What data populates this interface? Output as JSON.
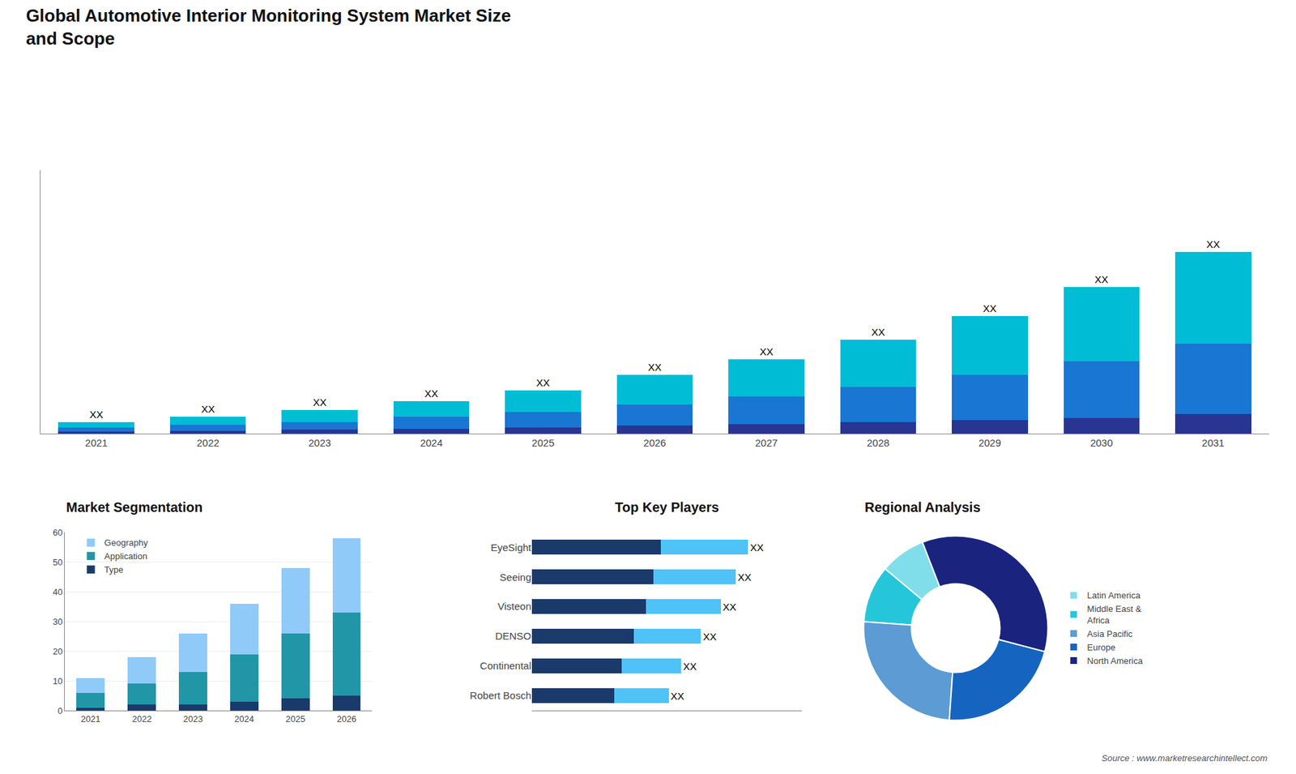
{
  "chart_data": [
    {
      "type": "bar",
      "title": "Global Automotive Interior Monitoring System Market Size\nand Scope",
      "annotations": [
        "Source : www.marketresearchintellect.com"
      ],
      "categories": [
        "2021",
        "2022",
        "2023",
        "2024",
        "2025",
        "2026",
        "2027",
        "2028",
        "2029",
        "2030",
        "2031"
      ],
      "stacked": true,
      "data_labels": true,
      "series": [
        {
          "color": "#283593",
          "values": [
            1,
            1.5,
            2,
            2.5,
            3,
            4,
            5,
            6,
            7,
            8,
            10
          ]
        },
        {
          "color": "#1976D2",
          "values": [
            2,
            3,
            4,
            6,
            8,
            11,
            14,
            18,
            23,
            29,
            36
          ]
        },
        {
          "color": "#00BCD4",
          "values": [
            3,
            4,
            6,
            8,
            11,
            15,
            19,
            24,
            30,
            38,
            47
          ],
          "value_labels": [
            "XX",
            "XX",
            "XX",
            "XX",
            "XX",
            "XX",
            "XX",
            "XX",
            "XX",
            "XX",
            "XX"
          ]
        }
      ],
      "ylim": [
        0,
        134.85
      ],
      "grid": false,
      "tick_labels": "x"
    },
    {
      "type": "bar",
      "title": "Market Segmentation",
      "categories": [
        "2021",
        "2022",
        "2023",
        "2024",
        "2025",
        "2026"
      ],
      "stacked": true,
      "series": [
        {
          "name": "Type",
          "color": "#1a3a6b",
          "values": [
            1,
            2,
            2,
            3,
            4,
            5
          ]
        },
        {
          "name": "Application",
          "color": "#2196A6",
          "values": [
            5,
            7,
            11,
            16,
            22,
            28
          ]
        },
        {
          "name": "Geography",
          "color": "#90CAF9",
          "values": [
            5,
            9,
            13,
            17,
            22,
            25
          ]
        }
      ],
      "ylim": [
        0,
        60
      ],
      "yticks": [
        0,
        10,
        20,
        30,
        40,
        50,
        60
      ],
      "grid": true,
      "legend": "upper left"
    },
    {
      "type": "bar",
      "title": "Top Key Players",
      "orientation": "horizontal",
      "categories": [
        "EyeSight",
        "Seeing",
        "Visteon",
        "DENSO",
        "Continental",
        "Robert Bosch"
      ],
      "stacked": true,
      "data_labels": true,
      "series": [
        {
          "color": "#1a3a6b",
          "values": [
            52,
            49,
            46,
            41,
            36,
            33
          ]
        },
        {
          "color": "#4FC3F7",
          "values": [
            35,
            33,
            30,
            27,
            24,
            22
          ],
          "value_labels": [
            "XX",
            "XX",
            "XX",
            "XX",
            "XX",
            "XX"
          ]
        }
      ],
      "xlim": [
        0,
        108.75
      ],
      "grid": false,
      "tick_labels": "y"
    },
    {
      "type": "pie",
      "title": "Regional Analysis",
      "categories": [
        "Latin America",
        "Middle East &\nAfrica",
        "Asia Pacific",
        "Europe",
        "North America"
      ],
      "values": [
        8,
        10,
        25,
        22,
        35
      ],
      "colors": [
        "#80DEEA",
        "#26C6DA",
        "#5C9BD4",
        "#1565C0",
        "#1a237e"
      ],
      "legend": "right"
    }
  ]
}
